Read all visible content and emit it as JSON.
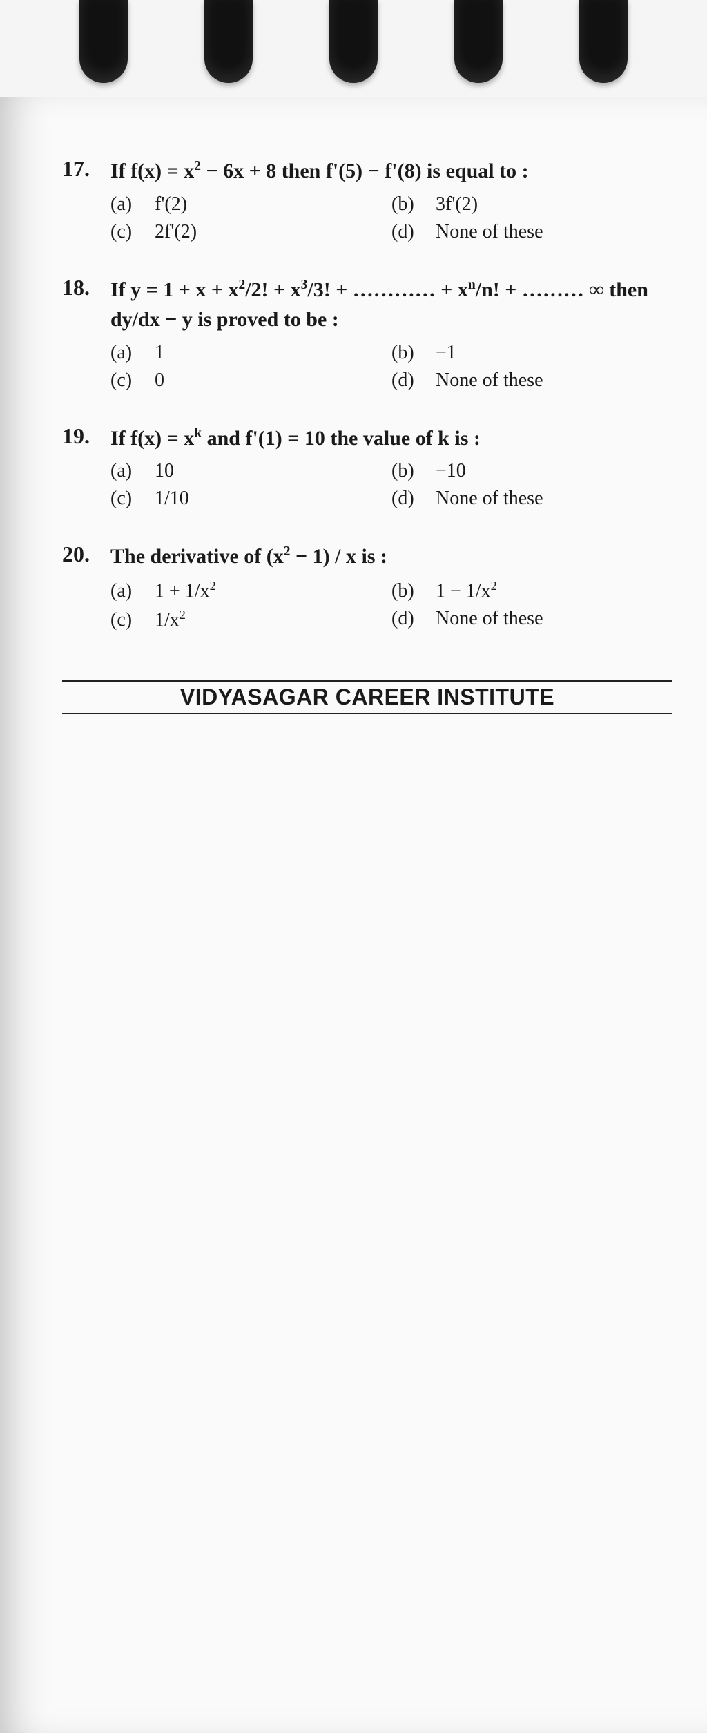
{
  "binding": {
    "ring_count": 5,
    "ring_color": "#111111"
  },
  "colors": {
    "page_bg": "#fafafa",
    "text": "#1a1a1a",
    "rule": "#222222"
  },
  "partial_option": {
    "label": "(d)",
    "text": "None of these"
  },
  "questions": [
    {
      "num": "17.",
      "stem_html": "If f(x) = x<sup>2</sup> − 6x + 8 then f'(5) − f'(8) is equal to :",
      "options": [
        {
          "label": "(a)",
          "text_html": "f'(2)"
        },
        {
          "label": "(b)",
          "text_html": "3f'(2)"
        },
        {
          "label": "(c)",
          "text_html": "2f'(2)"
        },
        {
          "label": "(d)",
          "text_html": "None of these"
        }
      ]
    },
    {
      "num": "18.",
      "stem_html": "If y = 1 + x + x<sup>2</sup>/2! + x<sup>3</sup>/3! + ………… + x<sup>n</sup>/n! + ……… ∞ then dy/dx − y is proved to be :",
      "options": [
        {
          "label": "(a)",
          "text_html": "1"
        },
        {
          "label": "(b)",
          "text_html": "−1"
        },
        {
          "label": "(c)",
          "text_html": "0"
        },
        {
          "label": "(d)",
          "text_html": "None of these"
        }
      ]
    },
    {
      "num": "19.",
      "stem_html": "If f(x) = x<sup>k</sup> and f'(1) = 10 the value of k is :",
      "options": [
        {
          "label": "(a)",
          "text_html": "10"
        },
        {
          "label": "(b)",
          "text_html": "−10"
        },
        {
          "label": "(c)",
          "text_html": "1/10"
        },
        {
          "label": "(d)",
          "text_html": "None of these"
        }
      ]
    },
    {
      "num": "20.",
      "stem_html": "The derivative of (x<sup>2</sup> − 1) / x is :",
      "options": [
        {
          "label": "(a)",
          "text_html": "1 + 1/x<sup>2</sup>"
        },
        {
          "label": "(b)",
          "text_html": "1 − 1/x<sup>2</sup>"
        },
        {
          "label": "(c)",
          "text_html": "1/x<sup>2</sup>"
        },
        {
          "label": "(d)",
          "text_html": "None of these"
        }
      ]
    }
  ],
  "footer": "VIDYASAGAR CAREER INSTITUTE"
}
